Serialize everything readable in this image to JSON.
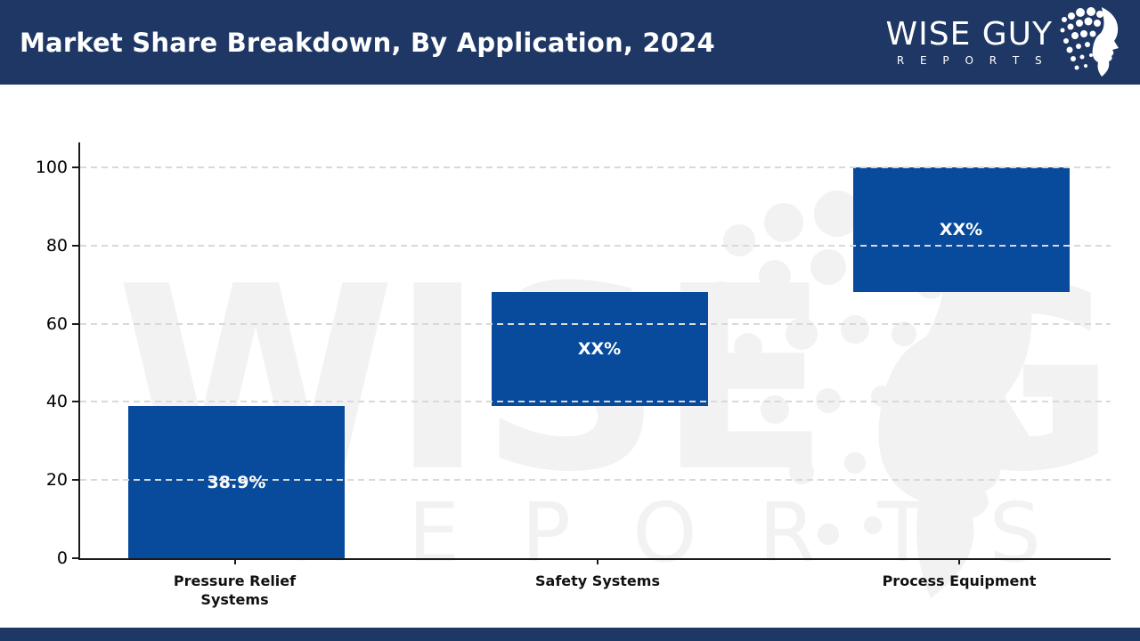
{
  "header": {
    "title": "Market Share Breakdown, By Application, 2024",
    "logo": {
      "name": "WISE GUY",
      "sub": "R E P O R T S"
    }
  },
  "watermark": {
    "line1": "WISE GUY",
    "line2": "R E P O R T S"
  },
  "chart_data": {
    "type": "bar",
    "subtype": "waterfall",
    "title": "Market Share Breakdown, By Application, 2024",
    "categories": [
      "Pressure Relief\nSystems",
      "Safety Systems",
      "Process Equipment"
    ],
    "bars": [
      {
        "category": "Pressure Relief Systems",
        "start": 0,
        "end": 38.9,
        "label": "38.9%"
      },
      {
        "category": "Safety Systems",
        "start": 38.9,
        "end": 68.2,
        "label": "XX%"
      },
      {
        "category": "Process Equipment",
        "start": 68.2,
        "end": 100,
        "label": "XX%"
      }
    ],
    "yticks": [
      0,
      20,
      40,
      60,
      80,
      100
    ],
    "ylim": [
      0,
      106
    ],
    "xlabel": "",
    "ylabel": "",
    "grid": "horizontal-dashed",
    "legend": "none",
    "bar_color": "#084a9c"
  },
  "colors": {
    "header_bg": "#1e3765",
    "footer_bg": "#1e3765",
    "bar": "#084a9c",
    "grid": "#d9d9d9",
    "axis": "#1a1a1a",
    "watermark": "#f2f2f2"
  }
}
